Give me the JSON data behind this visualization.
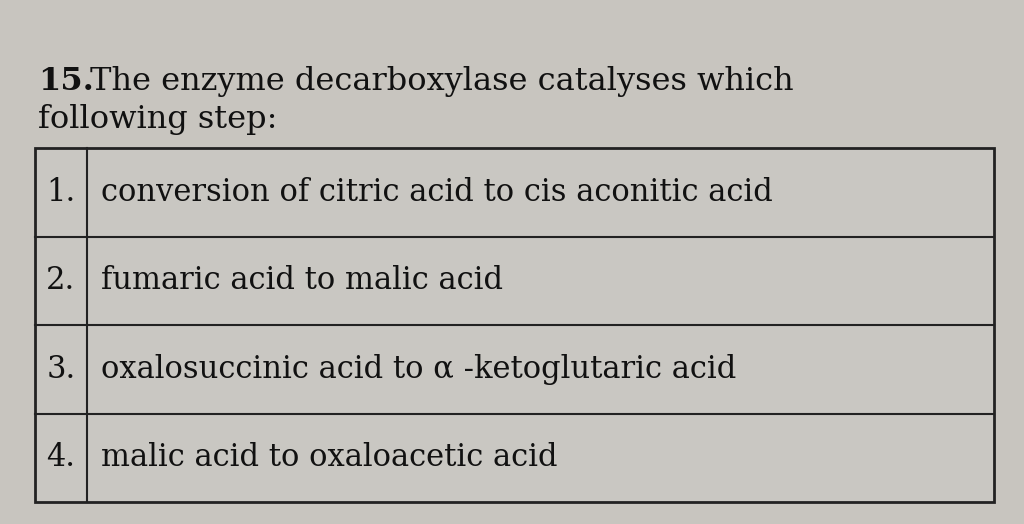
{
  "title_line1_bold": "15.",
  "title_line1_rest": " The enzyme decarboxylase catalyses which",
  "title_line2": "following step:",
  "rows": [
    [
      "1.",
      "conversion of citric acid to cis aconitic acid"
    ],
    [
      "2.",
      "fumaric acid to malic acid"
    ],
    [
      "3.",
      "oxalosuccinic acid to α -ketoglutaric acid"
    ],
    [
      "4.",
      "malic acid to oxaloacetic acid"
    ]
  ],
  "bg_color": "#c8c5bf",
  "table_bg": "#c9c7c2",
  "text_color": "#111111",
  "border_color": "#222222",
  "title_fontsize": 23,
  "cell_fontsize": 22,
  "fig_width": 10.24,
  "fig_height": 5.24,
  "dpi": 100
}
